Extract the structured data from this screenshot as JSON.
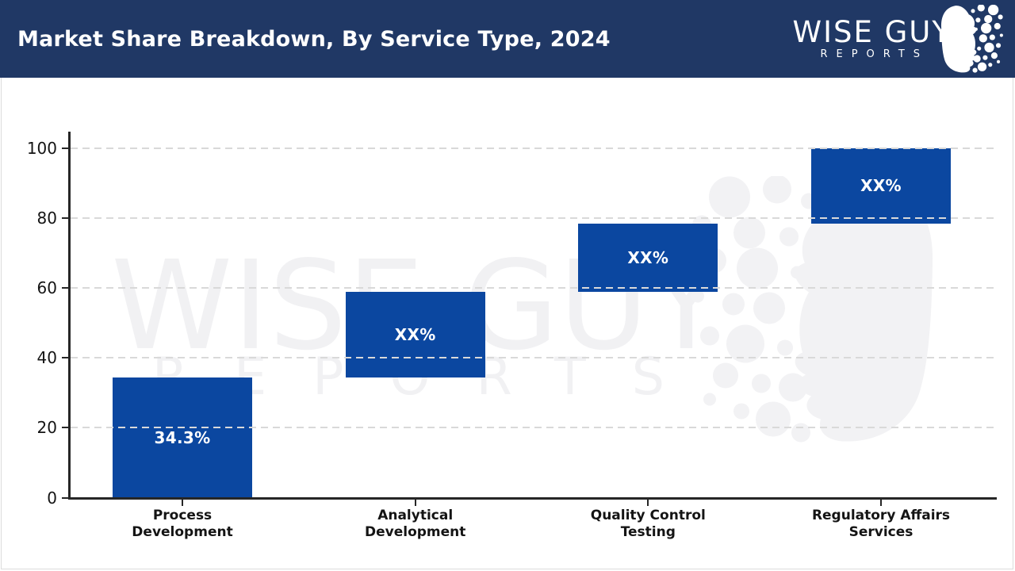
{
  "header": {
    "title": "Market Share Breakdown, By Service Type, 2024",
    "bg_color": "#203865",
    "logo": {
      "line1": "WISE GUY",
      "line2": "REPORTS"
    }
  },
  "watermark": {
    "line1": "WISE GUY",
    "line2": "REPORTS"
  },
  "chart_data": {
    "type": "bar",
    "variant": "waterfall",
    "title": "Market Share Breakdown, By Service Type, 2024",
    "categories": [
      "Process Development",
      "Analytical Development",
      "Quality Control Testing",
      "Regulatory Affairs Services"
    ],
    "category_lines": [
      [
        "Process",
        "Development"
      ],
      [
        "Analytical",
        "Development"
      ],
      [
        "Quality Control",
        "Testing"
      ],
      [
        "Regulatory Affairs",
        "Services"
      ]
    ],
    "segments": [
      {
        "category": "Process Development",
        "start": 0,
        "end": 34.3,
        "label": "34.3%"
      },
      {
        "category": "Analytical Development",
        "start": 34.3,
        "end": 59,
        "label": "XX%"
      },
      {
        "category": "Quality Control Testing",
        "start": 59,
        "end": 78.5,
        "label": "XX%"
      },
      {
        "category": "Regulatory Affairs Services",
        "start": 78.5,
        "end": 100,
        "label": "XX%"
      }
    ],
    "yticks": [
      0,
      20,
      40,
      60,
      80,
      100
    ],
    "ylim": [
      0,
      100
    ],
    "xlabel": "",
    "ylabel": "",
    "legend": "none",
    "grid": "horizontal-dashed",
    "bar_color": "#0b47a0",
    "label_color_inside_bar": "#ffffff"
  }
}
